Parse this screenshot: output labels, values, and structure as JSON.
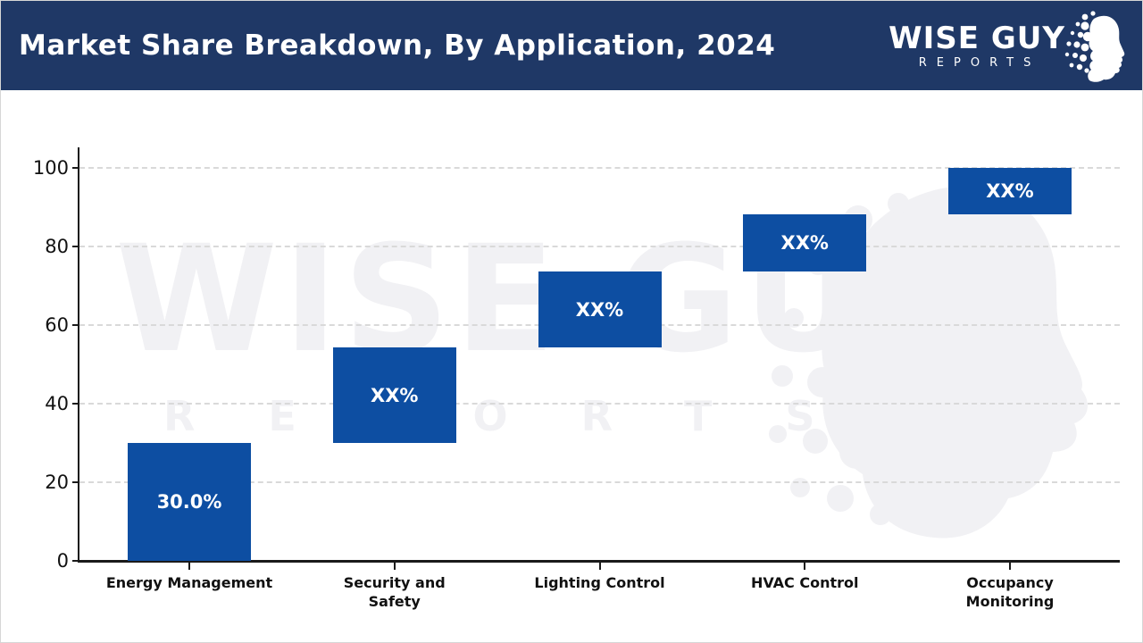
{
  "header": {
    "title": "Market Share Breakdown, By Application, 2024",
    "brand": {
      "line1": "WISE GUY",
      "line2": "REPORTS"
    }
  },
  "watermark": {
    "line1": "WISE GUY",
    "line2": "REPORTS"
  },
  "colors": {
    "header_bg": "#1f3866",
    "bar": "#0d4ea2",
    "grid": "#d9d9d9",
    "axis": "#1a1a1a",
    "value_label": "#ffffff",
    "watermark": "#f1f1f4"
  },
  "chart_data": {
    "type": "bar",
    "subtype": "waterfall",
    "title": "Market Share Breakdown, By Application, 2024",
    "categories": [
      "Energy Management",
      "Security and Safety",
      "Lighting Control",
      "HVAC Control",
      "Occupancy Monitoring"
    ],
    "category_label_lines": [
      [
        "Energy Management"
      ],
      [
        "Security and",
        "Safety"
      ],
      [
        "Lighting Control"
      ],
      [
        "HVAC Control"
      ],
      [
        "Occupancy",
        "Monitoring"
      ]
    ],
    "segments": [
      {
        "category": "Energy Management",
        "start": 0,
        "end": 30,
        "label": "30.0%"
      },
      {
        "category": "Security and Safety",
        "start": 30,
        "end": 54.3,
        "label": "XX%"
      },
      {
        "category": "Lighting Control",
        "start": 54.3,
        "end": 73.6,
        "label": "XX%"
      },
      {
        "category": "HVAC Control",
        "start": 73.6,
        "end": 88.2,
        "label": "XX%"
      },
      {
        "category": "Occupancy Monitoring",
        "start": 88.2,
        "end": 100,
        "label": "XX%"
      }
    ],
    "yticks": [
      0,
      20,
      40,
      60,
      80,
      100
    ],
    "ytick_labels": [
      "0",
      "20",
      "40",
      "60",
      "80",
      "100"
    ],
    "ylim": [
      0,
      105.2
    ],
    "xlabel": "",
    "ylabel": "",
    "grid": "horizontal-dashed",
    "legend": null
  }
}
